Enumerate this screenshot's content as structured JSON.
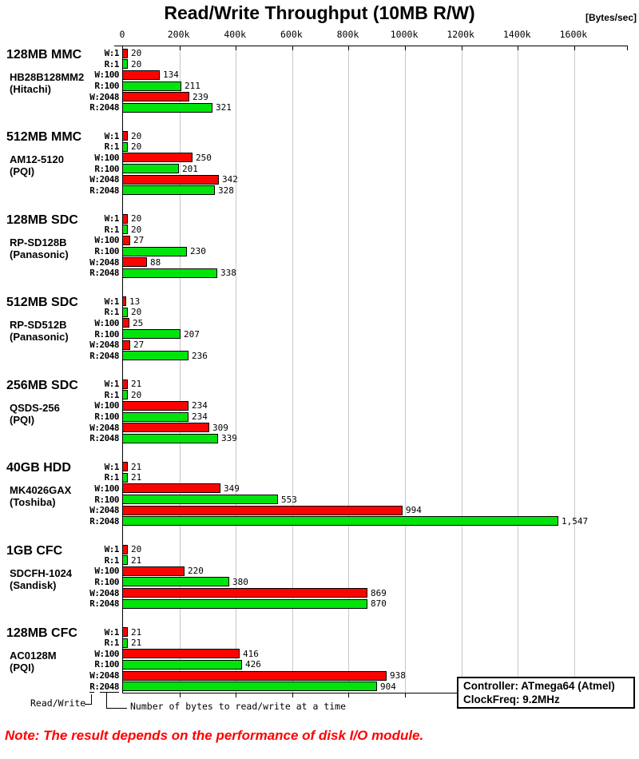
{
  "chart_data": {
    "type": "bar",
    "orientation": "horizontal",
    "title": "Read/Write Throughput (10MB R/W)",
    "unit_label": "[Bytes/sec]",
    "x_axis": {
      "ticks": [
        "0",
        "200k",
        "400k",
        "600k",
        "800k",
        "1000k",
        "1200k",
        "1400k",
        "1600k"
      ],
      "tick_values": [
        0,
        200000,
        400000,
        600000,
        800000,
        1000000,
        1200000,
        1400000,
        1600000
      ],
      "max": 1790000,
      "grid": true
    },
    "row_labels": [
      "W:1",
      "R:1",
      "W:100",
      "R:100",
      "W:2048",
      "R:2048"
    ],
    "colors": {
      "write": "#fa0400",
      "read": "#00e40c",
      "grid": "#c8c8c8"
    },
    "value_unit_multiplier": 1000,
    "groups": [
      {
        "device": "128MB MMC",
        "model": "HB28B128MM2",
        "brand": "(Hitachi)",
        "values": [
          20,
          20,
          134,
          211,
          239,
          321
        ],
        "display": [
          "20",
          "20",
          "134",
          "211",
          "239",
          "321"
        ]
      },
      {
        "device": "512MB MMC",
        "model": "AM12-5120",
        "brand": "(PQI)",
        "values": [
          20,
          20,
          250,
          201,
          342,
          328
        ],
        "display": [
          "20",
          "20",
          "250",
          "201",
          "342",
          "328"
        ]
      },
      {
        "device": "128MB SDC",
        "model": "RP-SD128B",
        "brand": "(Panasonic)",
        "values": [
          20,
          20,
          27,
          230,
          88,
          338
        ],
        "display": [
          "20",
          "20",
          "27",
          "230",
          "88",
          "338"
        ]
      },
      {
        "device": "512MB SDC",
        "model": "RP-SD512B",
        "brand": "(Panasonic)",
        "values": [
          13,
          20,
          25,
          207,
          27,
          236
        ],
        "display": [
          "13",
          "20",
          "25",
          "207",
          "27",
          "236"
        ]
      },
      {
        "device": "256MB SDC",
        "model": "QSDS-256",
        "brand": "(PQI)",
        "values": [
          21,
          20,
          234,
          234,
          309,
          339
        ],
        "display": [
          "21",
          "20",
          "234",
          "234",
          "309",
          "339"
        ]
      },
      {
        "device": "40GB HDD",
        "model": "MK4026GAX",
        "brand": "(Toshiba)",
        "values": [
          21,
          21,
          349,
          553,
          994,
          1547
        ],
        "display": [
          "21",
          "21",
          "349",
          "553",
          "994",
          "1,547"
        ]
      },
      {
        "device": "1GB CFC",
        "model": "SDCFH-1024",
        "brand": "(Sandisk)",
        "values": [
          20,
          21,
          220,
          380,
          869,
          870
        ],
        "display": [
          "20",
          "21",
          "220",
          "380",
          "869",
          "870"
        ]
      },
      {
        "device": "128MB CFC",
        "model": "AC0128M",
        "brand": "(PQI)",
        "values": [
          21,
          21,
          416,
          426,
          938,
          904
        ],
        "display": [
          "21",
          "21",
          "416",
          "426",
          "938",
          "904"
        ]
      }
    ]
  },
  "annotations": {
    "read_write": "Read/Write",
    "bytes_note": "Number of bytes to read/write at a time"
  },
  "info_box": {
    "line1": "Controller: ATmega64 (Atmel)",
    "line2": "ClockFreq: 9.2MHz"
  },
  "footer_note": "Note: The result depends on the performance of disk I/O module."
}
